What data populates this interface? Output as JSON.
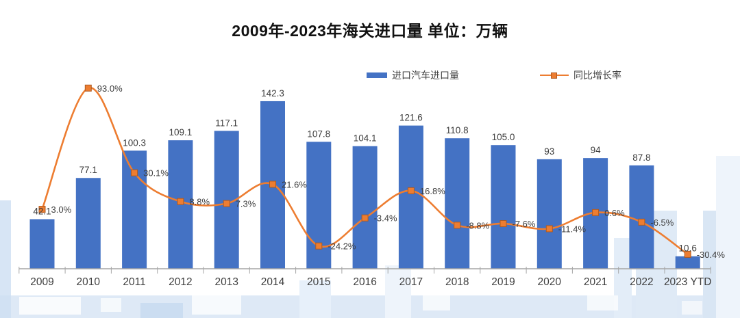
{
  "title": "2009年-2023年海关进口量 单位：万辆",
  "legend": {
    "bar_series_label": "进口汽车进口量",
    "line_series_label": "同比增长率"
  },
  "colors": {
    "bar": "#4472C4",
    "line": "#ED7D31",
    "marker_border": "#AE5A21",
    "axis": "#A6A6A6",
    "data_label": "#3D3D3D",
    "axis_label": "#3F3F3F",
    "background_tint": "#DEE9F6"
  },
  "chart_data": {
    "type": "combo",
    "title": "2009年-2023年海关进口量 单位：万辆",
    "unit": "万辆",
    "categories": [
      "2009",
      "2010",
      "2011",
      "2012",
      "2013",
      "2014",
      "2015",
      "2016",
      "2017",
      "2018",
      "2019",
      "2020",
      "2021",
      "2022",
      "2023 YTD"
    ],
    "series": [
      {
        "name": "进口汽车进口量",
        "type": "bar",
        "values": [
          42.1,
          77.1,
          100.3,
          109.1,
          117.1,
          142.3,
          107.8,
          104.1,
          121.6,
          110.8,
          105.0,
          93,
          94,
          87.8,
          10.6
        ],
        "labels": [
          "42.1",
          "77.1",
          "100.3",
          "109.1",
          "117.1",
          "142.3",
          "107.8",
          "104.1",
          "121.6",
          "110.8",
          "105.0",
          "93",
          "94",
          "87.8",
          "10.6"
        ]
      },
      {
        "name": "同比增长率",
        "type": "line",
        "values": [
          3.0,
          93.0,
          30.1,
          8.8,
          7.3,
          21.6,
          -24.2,
          -3.4,
          16.8,
          -8.8,
          -7.6,
          -11.4,
          0.6,
          -6.5,
          -30.4
        ],
        "labels": [
          "3.0%",
          "93.0%",
          "30.1%",
          "8.8%",
          "7.3%",
          "21.6%",
          "-24.2%",
          "-3.4%",
          "16.8%",
          "-8.8%",
          "-7.6%",
          "-11.4%",
          "0.6%",
          "-6.5%",
          "-30.4%"
        ]
      }
    ],
    "ylim_bars": [
      0,
      150
    ],
    "ylim_growth_pct": [
      -40,
      100
    ],
    "legend_position": "top",
    "grid": false,
    "data_labels_visible": true
  }
}
